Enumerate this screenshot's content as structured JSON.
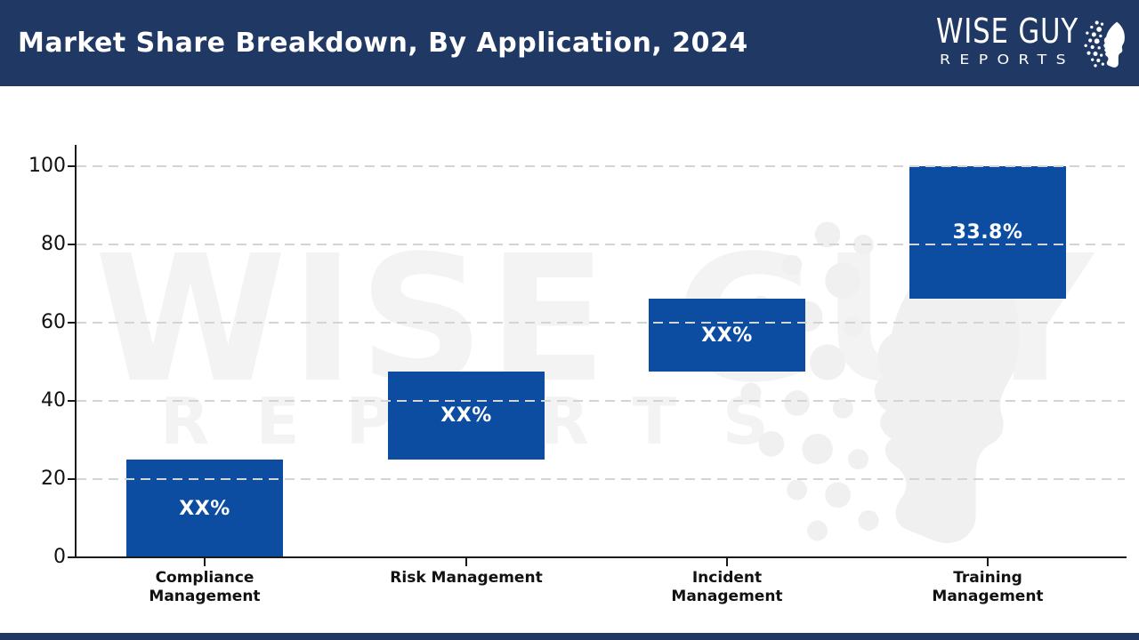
{
  "header": {
    "title": "Market Share Breakdown, By Application, 2024"
  },
  "logo": {
    "brand_top": "WISE GUY",
    "brand_bottom": "REPORTS"
  },
  "watermark": {
    "line1": "WISE GUY",
    "line2": "REPORTS"
  },
  "colors": {
    "header_bg": "#203864",
    "footer_bg": "#203864",
    "bar_fill": "#0c4da2",
    "bar_label_text": "#ffffff",
    "gridline": "#d4d4d4",
    "axis": "#1a1a1a",
    "watermark": "#f3f3f3"
  },
  "chart_data": {
    "type": "bar",
    "subtype": "floating-waterfall-percent",
    "title": "Market Share Breakdown, By Application, 2024",
    "xlabel": "",
    "ylabel": "",
    "ylim": [
      0,
      100
    ],
    "yticks": [
      0,
      20,
      40,
      60,
      80,
      100
    ],
    "grid": "horizontal-dashed",
    "legend": "none",
    "categories": [
      "Compliance Management",
      "Risk Management",
      "Incident Management",
      "Training Management"
    ],
    "category_label_lines": [
      "Compliance\nManagement",
      "Risk Management",
      "Incident\nManagement",
      "Training\nManagement"
    ],
    "segments": [
      {
        "category": "Compliance Management",
        "start": 0,
        "end": 25,
        "size": 25,
        "label": "XX%"
      },
      {
        "category": "Risk Management",
        "start": 25,
        "end": 47.4,
        "size": 22.4,
        "label": "XX%"
      },
      {
        "category": "Incident Management",
        "start": 47.4,
        "end": 66.2,
        "size": 18.8,
        "label": "XX%"
      },
      {
        "category": "Training Management",
        "start": 66.2,
        "end": 100,
        "size": 33.8,
        "label": "33.8%"
      }
    ]
  }
}
